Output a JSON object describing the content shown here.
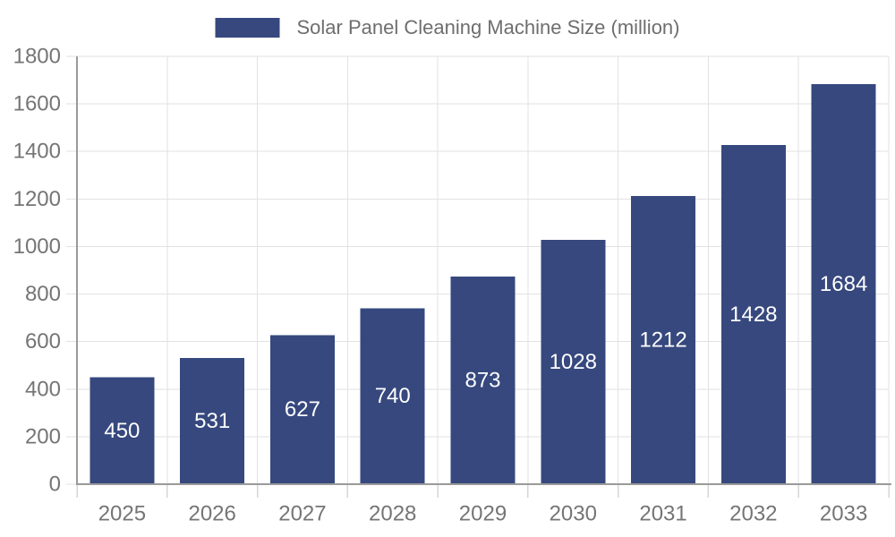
{
  "legend": {
    "label": "Solar Panel Cleaning Machine Size (million)",
    "swatch_color": "#36487e"
  },
  "chart_data": {
    "type": "bar",
    "title": "",
    "xlabel": "",
    "ylabel": "",
    "categories": [
      "2025",
      "2026",
      "2027",
      "2028",
      "2029",
      "2030",
      "2031",
      "2032",
      "2033"
    ],
    "series": [
      {
        "name": "Solar Panel Cleaning Machine Size (million)",
        "values": [
          450,
          531,
          627,
          740,
          873,
          1028,
          1212,
          1428,
          1684
        ]
      }
    ],
    "value_labels_shown": true,
    "ylim": [
      0,
      1800
    ],
    "ytick_step": 200,
    "yticks": [
      0,
      200,
      400,
      600,
      800,
      1000,
      1200,
      1400,
      1600,
      1800
    ],
    "grid": true,
    "legend_position": "top-center",
    "colors": {
      "bar": "#36487e",
      "grid": "#e2e2e2",
      "axis": "#9a9a9a",
      "tick": "#d6d6d6",
      "tick_label": "#757575",
      "value_label": "#ffffff"
    }
  }
}
